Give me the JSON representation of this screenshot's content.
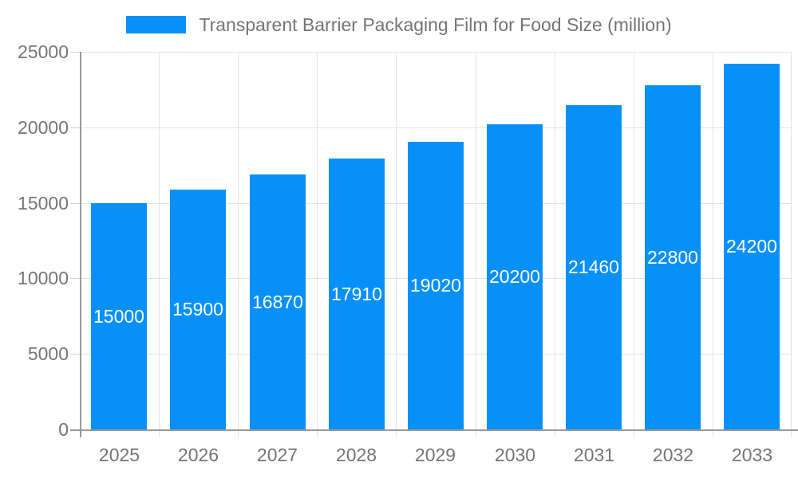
{
  "colors": {
    "bar": "#0890f9",
    "grid": "#e3e3e3",
    "tick": "#d0d0d0",
    "axis": "#999999",
    "text": "#757575",
    "value_label": "#ffffff",
    "background": "#ffffff"
  },
  "chart_data": {
    "type": "bar",
    "title": "Transparent Barrier Packaging Film for Food Size (million)",
    "categories": [
      "2025",
      "2026",
      "2027",
      "2028",
      "2029",
      "2030",
      "2031",
      "2032",
      "2033"
    ],
    "values": [
      15000,
      15900,
      16870,
      17910,
      19020,
      20200,
      21460,
      22800,
      24200
    ],
    "xlabel": "",
    "ylabel": "",
    "ylim": [
      0,
      25000
    ],
    "yticks": [
      0,
      5000,
      10000,
      15000,
      20000,
      25000
    ],
    "grid": true,
    "legend_position": "top",
    "value_label_position": "center-inside",
    "bar_width_ratio": 0.71
  }
}
